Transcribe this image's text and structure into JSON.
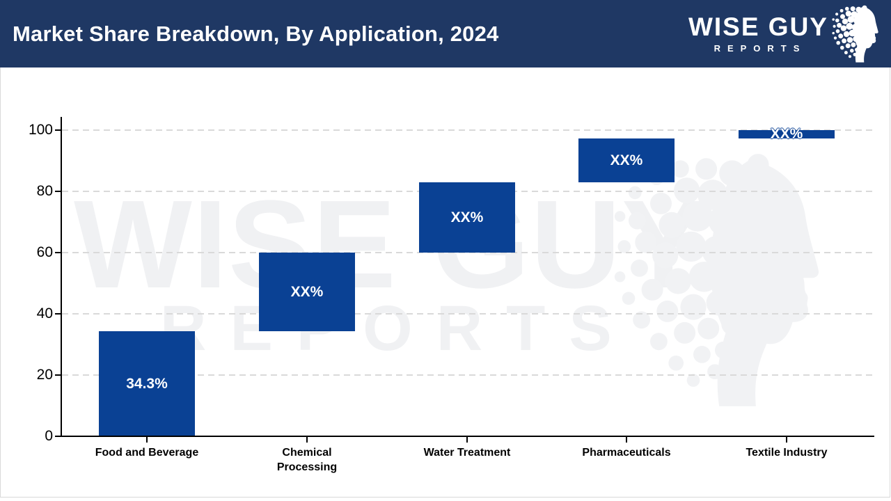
{
  "header": {
    "title": "Market Share Breakdown, By Application, 2024",
    "logo": {
      "wordmark": "WISE GUY",
      "subtext": "REPORTS",
      "head_icon": "dotted-face-icon"
    }
  },
  "watermark": {
    "wordmark": "WISE GUY",
    "subtext": "REPORTS"
  },
  "colors": {
    "header_bg": "#1f3864",
    "bar": "#0a4194",
    "grid": "#d9d9d9",
    "watermark": "#f0f1f3",
    "axis": "#000000",
    "bar_label": "#ffffff",
    "title_text": "#ffffff"
  },
  "chart_data": {
    "type": "bar",
    "subtype": "waterfall",
    "title": "Market Share Breakdown, By Application, 2024",
    "categories": [
      "Food and Beverage",
      "Chemical Processing",
      "Water Treatment",
      "Pharmaceuticals",
      "Textile Industry"
    ],
    "category_lines": [
      [
        "Food and Beverage"
      ],
      [
        "Chemical",
        "Processing"
      ],
      [
        "Water Treatment"
      ],
      [
        "Pharmaceuticals"
      ],
      [
        "Textile Industry"
      ]
    ],
    "bar_labels": [
      "34.3%",
      "XX%",
      "XX%",
      "XX%",
      "XX%"
    ],
    "values": [
      34.3,
      25.7,
      23.0,
      14.3,
      2.7
    ],
    "segment_start": [
      0,
      34.3,
      60,
      83,
      97.3
    ],
    "segment_end": [
      34.3,
      60,
      83,
      97.3,
      100
    ],
    "xlabel": "",
    "ylabel": "",
    "ylim": [
      0,
      100
    ],
    "yticks": [
      0,
      20,
      40,
      60,
      80,
      100
    ],
    "grid": "dashed-horizontal",
    "legend": "none"
  }
}
